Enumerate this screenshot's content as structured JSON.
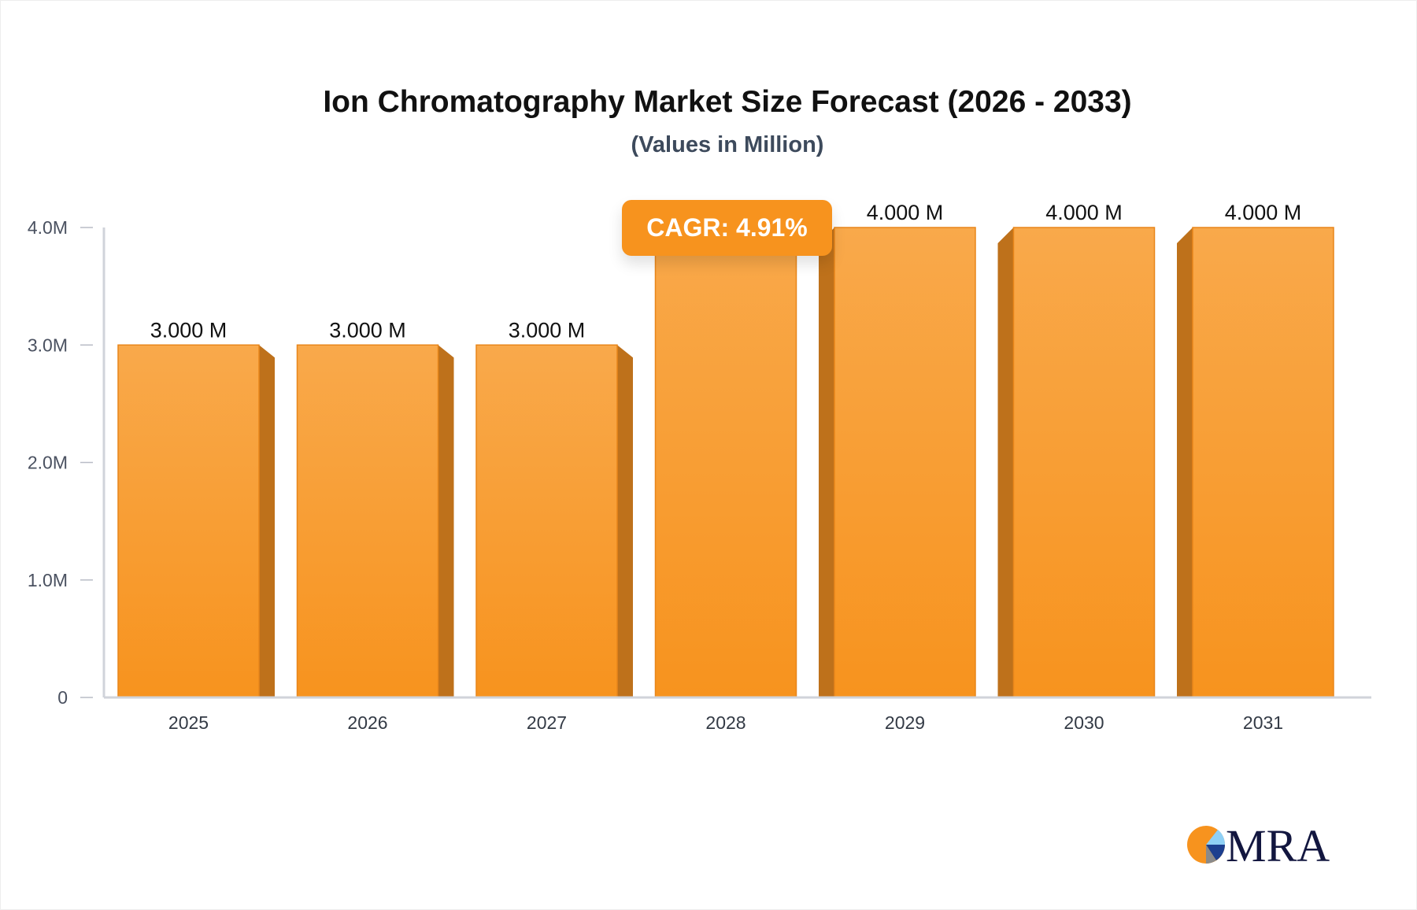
{
  "chart_data": {
    "type": "bar",
    "title": "Ion Chromatography Market Size Forecast (2026 - 2033)",
    "subtitle": "(Values in Million)",
    "categories": [
      "2025",
      "2026",
      "2027",
      "2028",
      "2029",
      "2030",
      "2031"
    ],
    "values": [
      3.0,
      3.0,
      3.0,
      4.0,
      4.0,
      4.0,
      4.0
    ],
    "data_labels": [
      "3.000 M",
      "3.000 M",
      "3.000 M",
      "",
      "4.000 M",
      "4.000 M",
      "4.000 M"
    ],
    "ylim": [
      0,
      4
    ],
    "yticks": [
      0,
      1,
      2,
      3,
      4
    ],
    "ytick_labels": [
      "0",
      "1.0M",
      "2.0M",
      "3.0M",
      "4.0M"
    ],
    "xlabel": "",
    "ylabel": "",
    "grid": false,
    "annotation": "CAGR: 4.91%",
    "colors": {
      "bar": "#f7931e",
      "bar_top": "#f9a94b",
      "bar_side": "#be711b",
      "axis": "#d0d3da"
    }
  },
  "logo": {
    "text": "MRA"
  }
}
